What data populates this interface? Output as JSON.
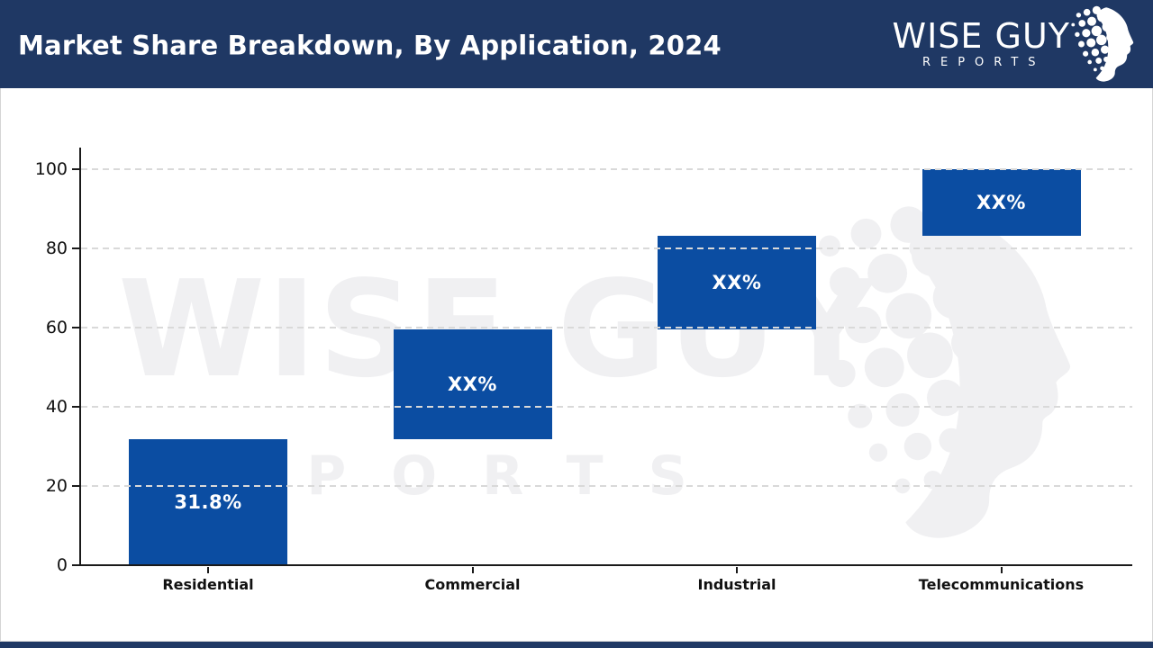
{
  "header": {
    "title": "Market Share Breakdown, By Application, 2024",
    "logo": {
      "name": "WISE GUY",
      "subtitle": "REPORTS"
    }
  },
  "watermark": {
    "name": "WISE GUY",
    "subtitle": "REPORTS"
  },
  "chart_data": {
    "type": "bar",
    "subtype": "waterfall",
    "title": "Market Share Breakdown, By Application, 2024",
    "categories": [
      "Residential",
      "Commercial",
      "Industrial",
      "Telecommunications"
    ],
    "bars": [
      {
        "category": "Residential",
        "start": 0,
        "end": 31.8,
        "label": "31.8%"
      },
      {
        "category": "Commercial",
        "start": 31.8,
        "end": 59.4,
        "label": "XX%"
      },
      {
        "category": "Industrial",
        "start": 59.4,
        "end": 83.2,
        "label": "XX%"
      },
      {
        "category": "Telecommunications",
        "start": 83.2,
        "end": 100,
        "label": "XX%"
      }
    ],
    "xlabel": "",
    "ylabel": "",
    "ylim": [
      0,
      100
    ],
    "yticks": [
      0,
      20,
      40,
      60,
      80,
      100
    ],
    "grid": {
      "axis": "y",
      "style": "dashed",
      "color": "#d9d9d9"
    },
    "legend": "none",
    "bar_color": "#0b4da2",
    "label_color": "#ffffff",
    "axis_color": "#1a1a1a",
    "header_color": "#1f3864"
  }
}
